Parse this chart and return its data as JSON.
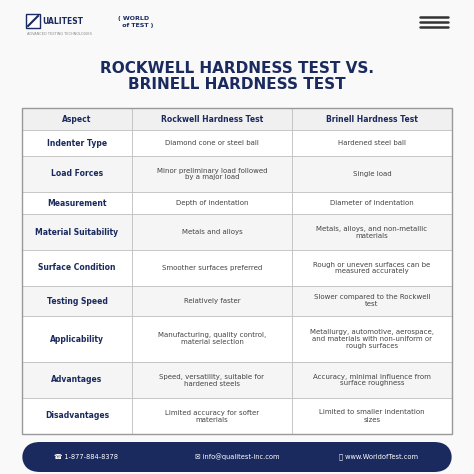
{
  "title_line1": "ROCKWELL HARDNESS TEST VS.",
  "title_line2": "BRINELL HARDNESS TEST",
  "header": [
    "Aspect",
    "Rockwell Hardness Test",
    "Brinell Hardness Test"
  ],
  "rows": [
    [
      "Indenter Type",
      "Diamond cone or steel ball",
      "Hardened steel ball"
    ],
    [
      "Load Forces",
      "Minor preliminary load followed\nby a major load",
      "Single load"
    ],
    [
      "Measurement",
      "Depth of indentation",
      "Diameter of indentation"
    ],
    [
      "Material Suitability",
      "Metals and alloys",
      "Metals, alloys, and non-metallic\nmaterials"
    ],
    [
      "Surface Condition",
      "Smoother surfaces preferred",
      "Rough or uneven surfaces can be\nmeasured accurately"
    ],
    [
      "Testing Speed",
      "Relatively faster",
      "Slower compared to the Rockwell\ntest"
    ],
    [
      "Applicability",
      "Manufacturing, quality control,\nmaterial selection",
      "Metallurgy, automotive, aerospace,\nand materials with non-uniform or\nrough surfaces"
    ],
    [
      "Advantages",
      "Speed, versatility, suitable for\nhardened steels",
      "Accuracy, minimal influence from\nsurface roughness"
    ],
    [
      "Disadvantages",
      "Limited accuracy for softer\nmaterials",
      "Limited to smaller indentation\nsizes"
    ]
  ],
  "bg_color": "#f9f9f9",
  "header_bg": "#f0f0f0",
  "header_text_color": "#1a2a5e",
  "aspect_text_color": "#1a2a5e",
  "cell_text_color": "#444444",
  "title_color": "#1a2a5e",
  "border_color": "#bbbbbb",
  "footer_bg": "#1a2a5e",
  "footer_text_color": "#ffffff",
  "footer_items": [
    "☎ 1-877-884-8378",
    "✉ info@qualitest-inc.com",
    "🌐 www.WorldofTest.com"
  ],
  "row_bg_odd": "#ffffff",
  "row_bg_even": "#f5f5f5"
}
